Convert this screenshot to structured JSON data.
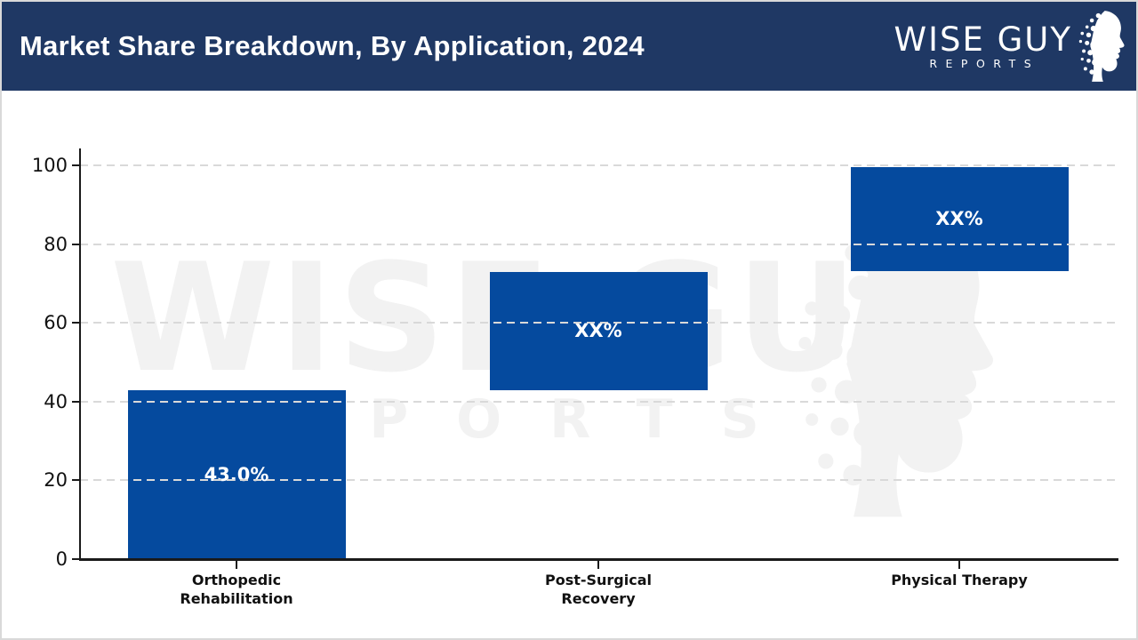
{
  "header": {
    "title": "Market Share Breakdown, By Application, 2024",
    "logo": {
      "brand_top": "WISE GUY",
      "brand_bottom": "REPORTS",
      "face_icon": "dotted-head-profile"
    }
  },
  "watermark": {
    "line1": "WISE GUY",
    "line2": "REPORTS",
    "face_icon": "dotted-head-profile"
  },
  "colors": {
    "header_bg": "#1f3864",
    "bar_blue": "#054a9e",
    "axis": "#1a1a1a",
    "gridline": "#d9d9d9",
    "watermark": "#f2f2f2",
    "bar_label_text": "#ffffff"
  },
  "chart_data": {
    "type": "bar",
    "variant": "floating-stacked-waterfall",
    "title": "Market Share Breakdown, By Application, 2024",
    "categories": [
      [
        "Orthopedic",
        "Rehabilitation"
      ],
      [
        "Post-Surgical",
        "Recovery"
      ],
      [
        "Physical Therapy"
      ]
    ],
    "segments": [
      {
        "from": 0,
        "to": 43.0,
        "label": "43.0%"
      },
      {
        "from": 43.0,
        "to": 73.0,
        "label": "XX%"
      },
      {
        "from": 73.2,
        "to": 99.5,
        "label": "XX%"
      }
    ],
    "yticks": [
      0,
      20,
      40,
      60,
      80,
      100
    ],
    "ylim": [
      0,
      100
    ],
    "xlabel": "",
    "ylabel": "",
    "grid": "dashed-horizontal",
    "legend": "none",
    "bar_color": "#054a9e",
    "label_color": "#ffffff"
  }
}
